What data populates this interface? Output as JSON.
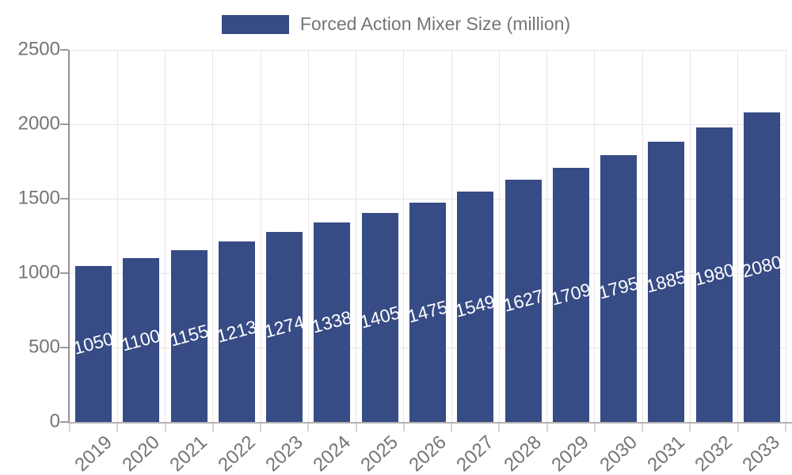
{
  "legend": {
    "label": "Forced Action Mixer Size (million)"
  },
  "chart_data": {
    "type": "bar",
    "title": "",
    "xlabel": "",
    "ylabel": "",
    "categories": [
      "2019",
      "2020",
      "2021",
      "2022",
      "2023",
      "2024",
      "2025",
      "2026",
      "2027",
      "2028",
      "2029",
      "2030",
      "2031",
      "2032",
      "2033"
    ],
    "values": [
      1050,
      1100,
      1155,
      1213,
      1274,
      1338,
      1405,
      1475,
      1549,
      1627,
      1709,
      1795,
      1885,
      1980,
      2080
    ],
    "series_name": "Forced Action Mixer Size (million)",
    "ylim": [
      0,
      2500
    ],
    "ytick_labels": [
      "0",
      "500",
      "1000",
      "1500",
      "2000",
      "2500"
    ],
    "ytick_values": [
      0,
      500,
      1000,
      1500,
      2000,
      2500
    ],
    "grid": true,
    "legend_position": "top",
    "bar_color": "#374b85",
    "value_label_color": "#ffffff",
    "axis_text_color": "#757575",
    "grid_color": "#e6e6e8"
  }
}
